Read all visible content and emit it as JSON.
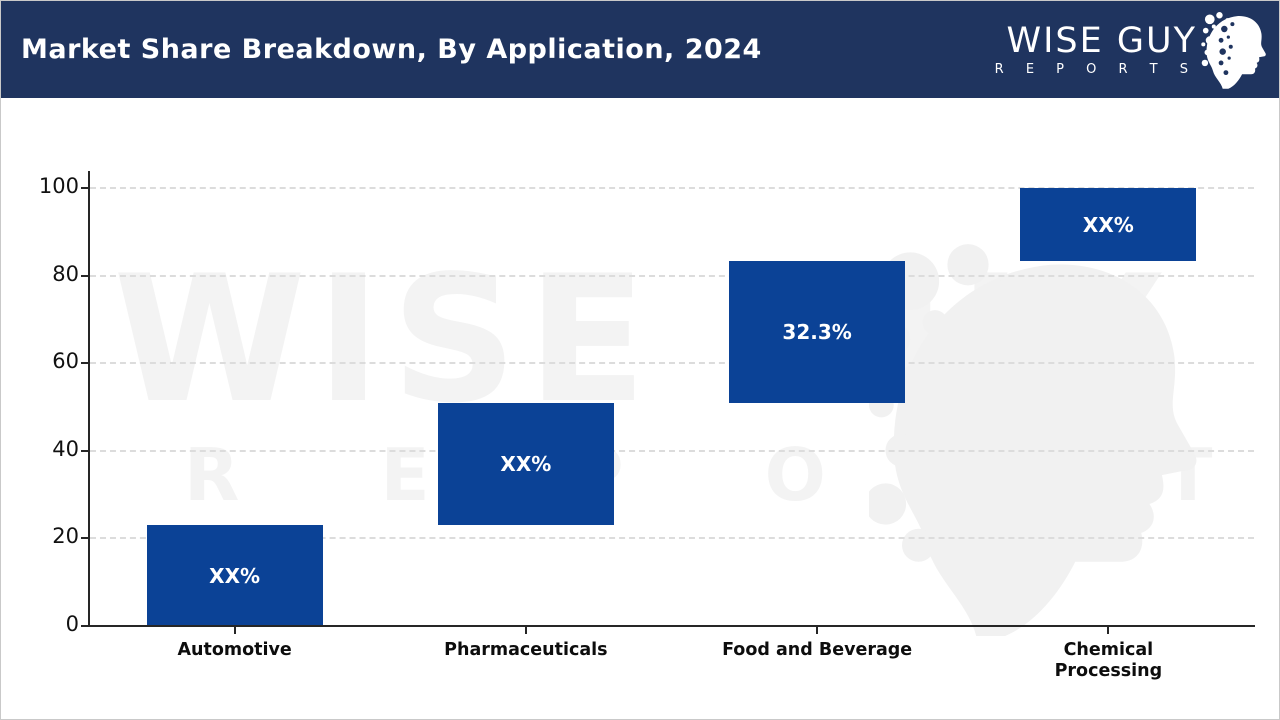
{
  "header": {
    "title": "Market Share Breakdown, By Application, 2024",
    "logo_line1": "WISE GUY",
    "logo_line2": "R E P O R T S"
  },
  "watermark": {
    "line1": "WISE GUY",
    "line2": "R E P O R T S"
  },
  "chart_data": {
    "type": "bar",
    "subtype": "waterfall-floating",
    "title": "Market Share Breakdown, By Application, 2024",
    "categories": [
      "Automotive",
      "Pharmaceuticals",
      "Food and Beverage",
      "Chemical\nProcessing"
    ],
    "bars": [
      {
        "category": "Automotive",
        "start": 0,
        "end": 23,
        "value": 23,
        "label": "XX%"
      },
      {
        "category": "Pharmaceuticals",
        "start": 23,
        "end": 51,
        "value": 28,
        "label": "XX%"
      },
      {
        "category": "Food and Beverage",
        "start": 51,
        "end": 83.3,
        "value": 32.3,
        "label": "32.3%"
      },
      {
        "category": "Chemical\nProcessing",
        "start": 83.3,
        "end": 100,
        "value": 16.7,
        "label": "XX%"
      }
    ],
    "xlabel": "",
    "ylabel": "",
    "ylim": [
      0,
      100
    ],
    "yticks": [
      0,
      20,
      40,
      60,
      80,
      100
    ],
    "grid": true,
    "legend": "none",
    "bar_color": "#0b4296",
    "bar_label_color": "#ffffff"
  },
  "colors": {
    "header_bg": "#1f345f",
    "bar": "#0b4296",
    "grid": "#dcdcdc",
    "axis": "#262626",
    "watermark": "#f1f1f1"
  }
}
